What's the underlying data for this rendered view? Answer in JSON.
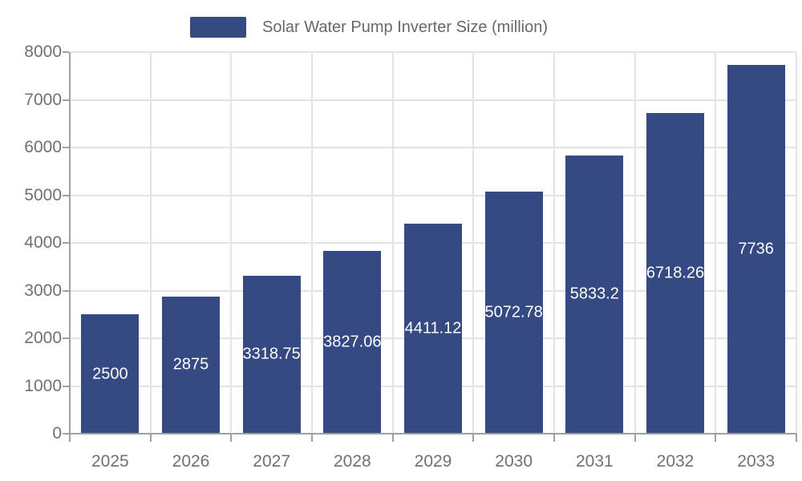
{
  "chart_data": {
    "type": "bar",
    "legend": "Solar Water Pump Inverter Size (million)",
    "categories": [
      "2025",
      "2026",
      "2027",
      "2028",
      "2029",
      "2030",
      "2031",
      "2032",
      "2033"
    ],
    "values": [
      2500,
      2875,
      3318.75,
      3827.06,
      4411.12,
      5072.78,
      5833.2,
      6718.26,
      7736
    ],
    "bar_labels": [
      "2500",
      "2875",
      "3318.75",
      "3827.06",
      "4411.12",
      "5072.78",
      "5833.2",
      "6718.26",
      "7736"
    ],
    "ylim": [
      0,
      8000
    ],
    "ytick_interval": 1000,
    "grid": true,
    "legend_position": "top-center",
    "colors": {
      "bar": "#354A82",
      "axis": "#9DA0A5",
      "grid": "#E3E4E6",
      "text": "#6E7079",
      "legend_text": "#64676C",
      "bar_label": "#FFFFFF"
    }
  }
}
